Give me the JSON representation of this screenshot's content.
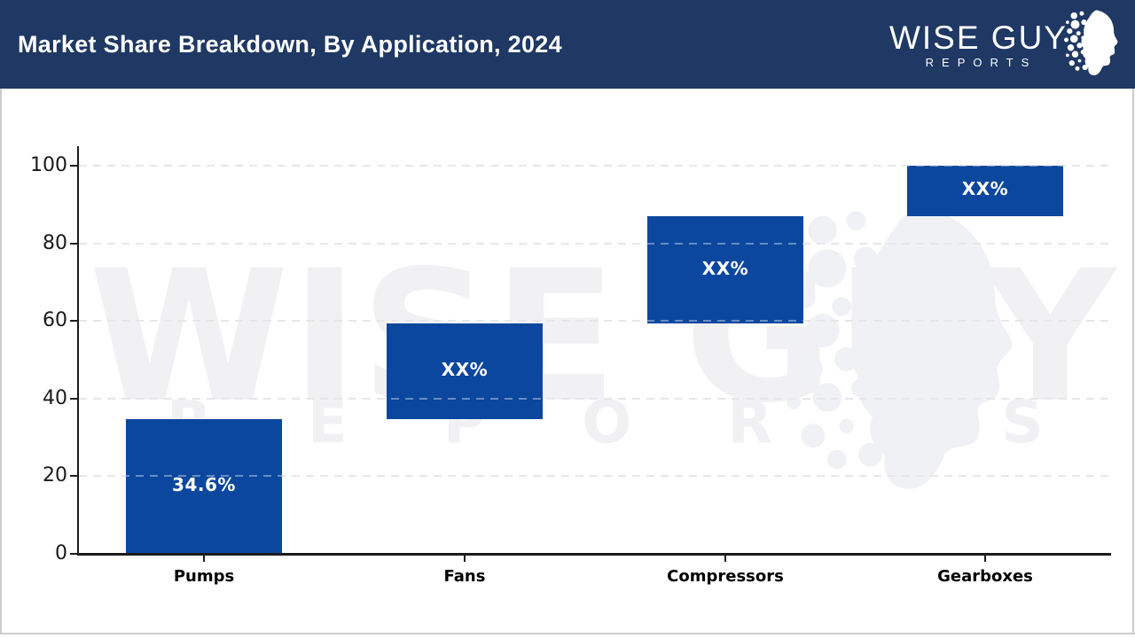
{
  "header": {
    "title": "Market Share Breakdown, By Application, 2024",
    "logo": {
      "wise_guy": "WISE GUY",
      "reports": "REPORTS"
    }
  },
  "watermark": {
    "wise_guy": "WISE GUY",
    "reports": "REPORTS"
  },
  "colors": {
    "header_bg": "#1f3864",
    "bar": "#0b479e",
    "grid": "#d9d9d9",
    "axis": "#1c1c1c",
    "bar_label": "#ffffff",
    "watermark": "#f1f1f4",
    "frame_line": "#cccccc"
  },
  "chart_data": {
    "type": "bar",
    "subtype": "waterfall",
    "title": "Market Share Breakdown, By Application, 2024",
    "categories": [
      "Pumps",
      "Fans",
      "Compressors",
      "Gearboxes"
    ],
    "segments": [
      [
        0,
        34.6
      ],
      [
        34.6,
        59.3
      ],
      [
        59.3,
        87.0
      ],
      [
        87.0,
        100.0
      ]
    ],
    "values": [
      34.6,
      24.7,
      27.7,
      13.0
    ],
    "bar_labels": [
      "34.6%",
      "XX%",
      "XX%",
      "XX%"
    ],
    "ylim": [
      0,
      100
    ],
    "yticks": [
      0,
      20,
      40,
      60,
      80,
      100
    ],
    "grid": "horizontal-dashed",
    "legend": null
  }
}
